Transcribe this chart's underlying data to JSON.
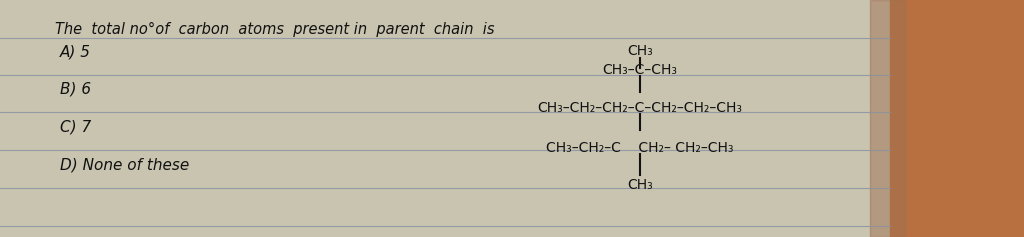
{
  "page_bg": "#c8c4b0",
  "ruled_line_color": "#8890a0",
  "text_color": "#111111",
  "shadow_color": "#9c8070",
  "wood_color": "#b87040",
  "figsize": [
    10.24,
    2.37
  ],
  "dpi": 100,
  "title_line1": "The total no° of carbon atoms present in parent chain is",
  "opt_a": "A) 5",
  "opt_b": "B) 6",
  "opt_c": "C) 7",
  "opt_d": "D) None of these",
  "struct_top_ch3": "CH₃",
  "struct_row2": "CH₃-C-CH₃",
  "struct_row3": "CH₃-CH₂-CH₂-C - CH₂ - CH₂-CH₃",
  "struct_row4": "CH₃-CH₂-C    CH₂- CH₂-CH₃",
  "struct_bot_ch3": "CH₃"
}
